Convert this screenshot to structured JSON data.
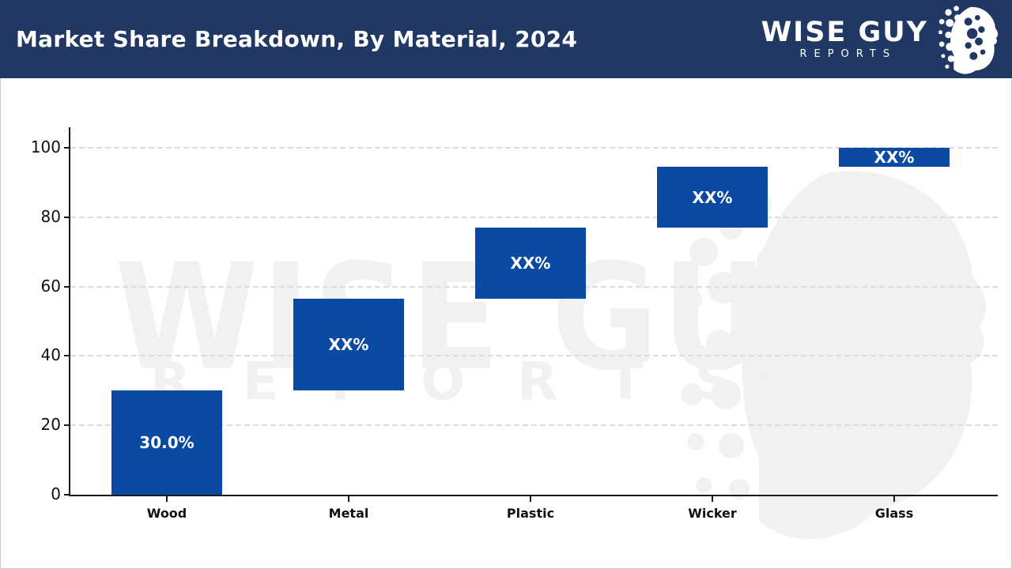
{
  "header": {
    "title": "Market Share Breakdown, By Material, 2024",
    "bg_color": "#223864",
    "logo": {
      "line1": "WISE GUY",
      "line2": "REPORTS"
    }
  },
  "watermark": {
    "line1": "WISE GUY",
    "line2": "REPORTS"
  },
  "chart_data": {
    "type": "bar",
    "subtype": "waterfall",
    "title": "Market Share Breakdown, By Material, 2024",
    "categories": [
      "Wood",
      "Metal",
      "Plastic",
      "Wicker",
      "Glass"
    ],
    "series": [
      {
        "name": "Market share by material (%)",
        "segments": [
          {
            "category": "Wood",
            "start": 0,
            "end": 30,
            "label": "30.0%"
          },
          {
            "category": "Metal",
            "start": 30,
            "end": 56.5,
            "label": "XX%"
          },
          {
            "category": "Plastic",
            "start": 56.5,
            "end": 77,
            "label": "XX%"
          },
          {
            "category": "Wicker",
            "start": 77,
            "end": 94.5,
            "label": "XX%"
          },
          {
            "category": "Glass",
            "start": 94.5,
            "end": 100,
            "label": "XX%"
          }
        ]
      }
    ],
    "yticks": [
      0,
      20,
      40,
      60,
      80,
      100
    ],
    "ylim": [
      0,
      106
    ],
    "xlabel": "",
    "ylabel": "",
    "bar_color": "#0B4AA2",
    "bar_label_color": "#ffffff",
    "grid": {
      "axis": "y",
      "style": "dashed",
      "color": "#dcdcdc"
    },
    "legend": "none"
  }
}
